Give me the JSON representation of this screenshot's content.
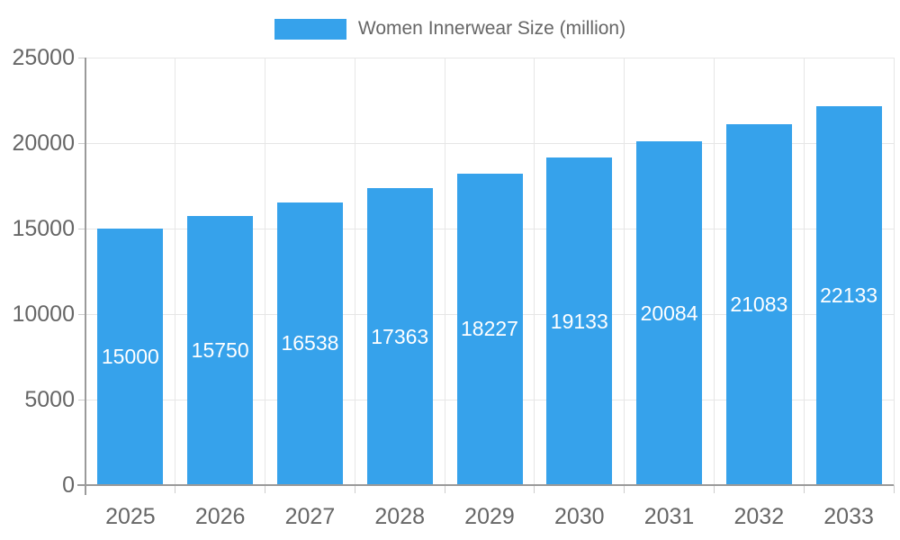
{
  "chart_data": {
    "type": "bar",
    "title": "Women Innerwear Size (million)",
    "categories": [
      "2025",
      "2026",
      "2027",
      "2028",
      "2029",
      "2030",
      "2031",
      "2032",
      "2033"
    ],
    "values": [
      15000,
      15750,
      16538,
      17363,
      18227,
      19133,
      20084,
      21083,
      22133
    ],
    "xlabel": "",
    "ylabel": "",
    "ylim": [
      0,
      25000
    ],
    "yticks": [
      0,
      5000,
      10000,
      15000,
      20000,
      25000
    ],
    "grid": "on",
    "legend_position": "top-center",
    "colors": {
      "bar": "#36a2eb",
      "bar_value_text": "#ffffff",
      "axis_text": "#666666",
      "legend_text": "#666666",
      "gridline": "#e6e6e6",
      "axis_line": "#9a9a9a",
      "tick_mark": "#cccccc",
      "background": "#ffffff"
    }
  }
}
